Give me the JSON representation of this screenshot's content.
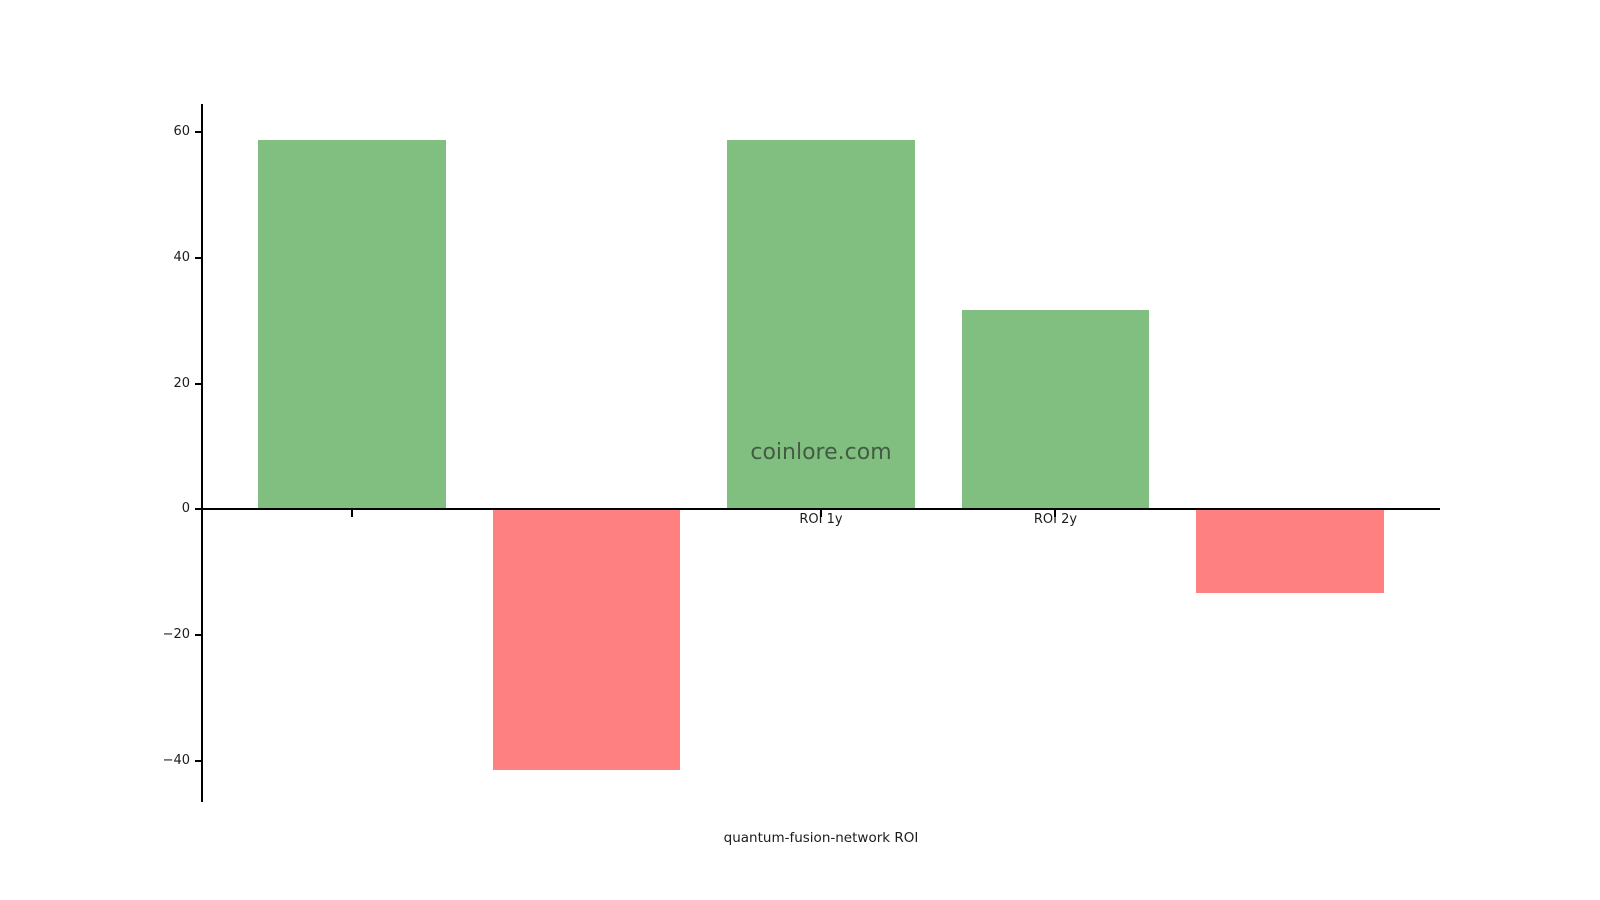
{
  "chart_data": {
    "type": "bar",
    "title": "",
    "xlabel": "quantum-fusion-network ROI",
    "ylabel": "",
    "watermark": "coinlore.com",
    "categories": [
      "",
      "",
      "ROI 1y",
      "ROI 2y",
      ""
    ],
    "series": [
      {
        "name": "ROI",
        "values": [
          58.7,
          -41.5,
          58.7,
          31.7,
          -13.4
        ]
      }
    ],
    "bars": [
      {
        "label": "",
        "value": 58.7,
        "color": "#80bf80",
        "tick": true
      },
      {
        "label": "",
        "value": -41.5,
        "color": "#ff8080",
        "tick": false
      },
      {
        "label": "ROI 1y",
        "value": 58.7,
        "color": "#80bf80",
        "tick": true
      },
      {
        "label": "ROI 2y",
        "value": 31.7,
        "color": "#80bf80",
        "tick": true
      },
      {
        "label": "",
        "value": -13.4,
        "color": "#ff8080",
        "tick": false
      }
    ],
    "y_ticks": [
      60,
      40,
      20,
      0,
      -20,
      -40
    ],
    "y_tick_labels": [
      "60",
      "40",
      "20",
      "0",
      "−20",
      "−40"
    ],
    "ylim": [
      -46.6,
      64.5
    ],
    "x_span_units": 5.28,
    "x_offset_units": 0.64,
    "bar_width_units": 0.8,
    "grid": false,
    "legend": "none",
    "colors": {
      "positive": "#80bf80",
      "negative": "#ff8080",
      "axis": "#000000",
      "text": "#1c1c1c",
      "watermark_text": "rgba(25,25,25,0.6)",
      "background": "#ffffff"
    }
  }
}
